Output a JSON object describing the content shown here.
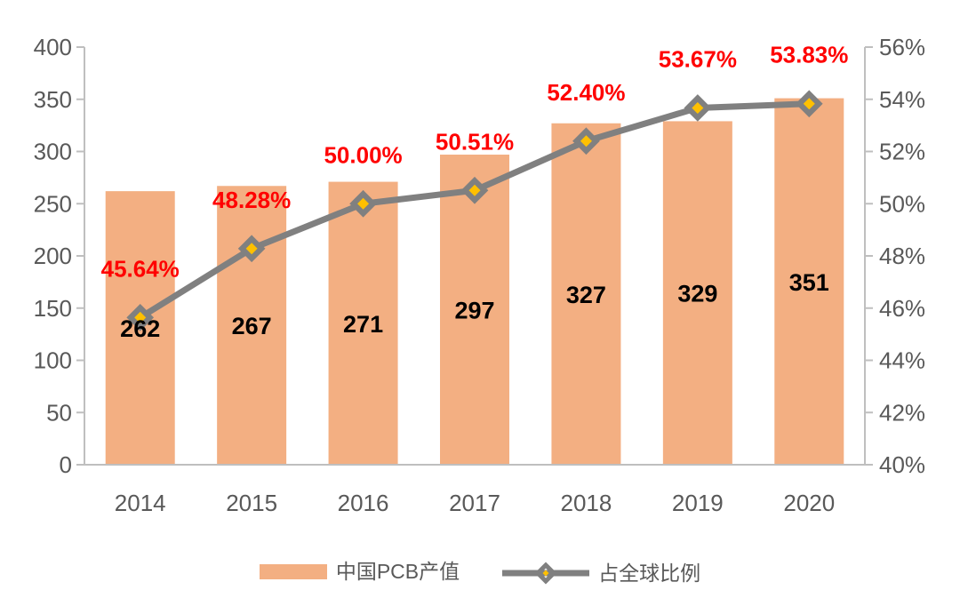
{
  "chart_data": {
    "type": "bar",
    "subtype": "combo-bar-line",
    "title": "",
    "categories": [
      "2014",
      "2015",
      "2016",
      "2017",
      "2018",
      "2019",
      "2020"
    ],
    "series": [
      {
        "name": "中国PCB产值",
        "type": "bar",
        "axis": "left",
        "values": [
          262,
          267,
          271,
          297,
          327,
          329,
          351
        ],
        "labels": [
          "262",
          "267",
          "271",
          "297",
          "327",
          "329",
          "351"
        ]
      },
      {
        "name": "占全球比例",
        "type": "line",
        "axis": "right",
        "values": [
          45.64,
          48.28,
          50.0,
          50.51,
          52.4,
          53.67,
          53.83
        ],
        "labels": [
          "45.64%",
          "48.28%",
          "50.00%",
          "50.51%",
          "52.40%",
          "53.67%",
          "53.83%"
        ]
      }
    ],
    "left_axis": {
      "min": 0,
      "max": 400,
      "step": 50,
      "ticks": [
        "0",
        "50",
        "100",
        "150",
        "200",
        "250",
        "300",
        "350",
        "400"
      ]
    },
    "right_axis": {
      "min": 40,
      "max": 56,
      "step": 2,
      "ticks": [
        "40%",
        "42%",
        "44%",
        "46%",
        "48%",
        "50%",
        "52%",
        "54%",
        "56%"
      ]
    },
    "grid": false,
    "legend_position": "bottom"
  },
  "legend": {
    "bar_label": "中国PCB产值",
    "line_label": "占全球比例"
  },
  "colors": {
    "bar_fill": "#F3AF82",
    "line_stroke": "#808080",
    "marker_fill": "#FFC000",
    "bar_value_label": "#000000",
    "line_value_label": "#FF0000",
    "axis_line": "#BFBFBF",
    "axis_text": "#595959",
    "legend_text": "#595959",
    "background": "#FFFFFF"
  }
}
